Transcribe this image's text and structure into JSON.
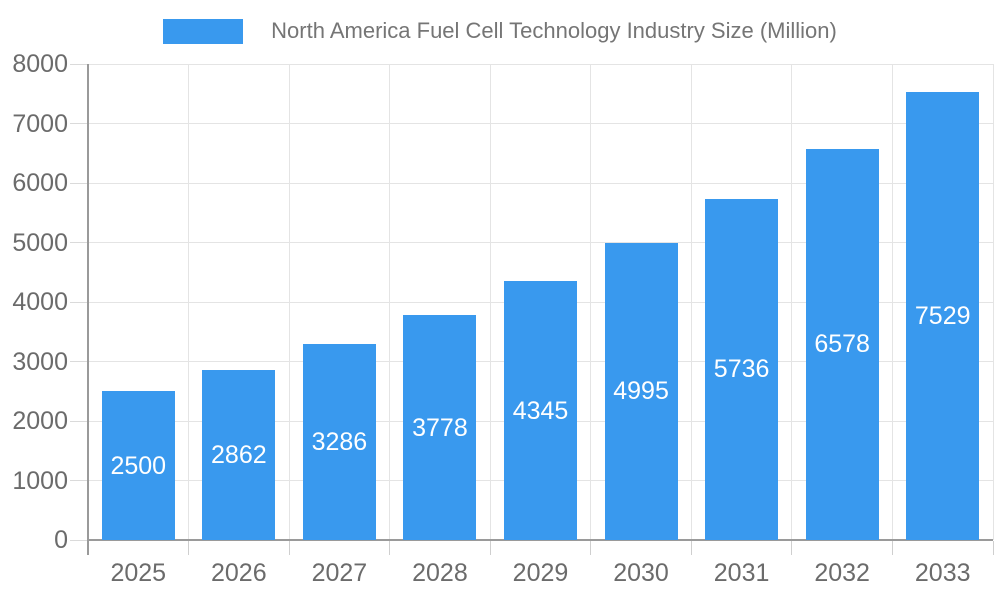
{
  "legend": {
    "label": "North America Fuel Cell Technology Industry Size (Million)"
  },
  "chart_data": {
    "type": "bar",
    "title": "North America Fuel Cell Technology Industry Size (Million)",
    "categories": [
      "2025",
      "2026",
      "2027",
      "2028",
      "2029",
      "2030",
      "2031",
      "2032",
      "2033"
    ],
    "values": [
      2500,
      2862,
      3286,
      3778,
      4345,
      4995,
      5736,
      6578,
      7529
    ],
    "xlabel": "",
    "ylabel": "",
    "ylim": [
      0,
      8000
    ],
    "ytick_step": 1000,
    "ytick_labels": [
      "0",
      "1000",
      "2000",
      "3000",
      "4000",
      "5000",
      "6000",
      "7000",
      "8000"
    ],
    "grid": true,
    "legend_position": "top",
    "value_labels": "inside-center",
    "colors": {
      "bar": "#3999EE",
      "grid": "#e4e4e4",
      "axis": "#9a9a9a",
      "tick_label": "#6b6b6b",
      "legend_text": "#757575",
      "value_label": "#ffffff",
      "background": "#ffffff"
    }
  }
}
